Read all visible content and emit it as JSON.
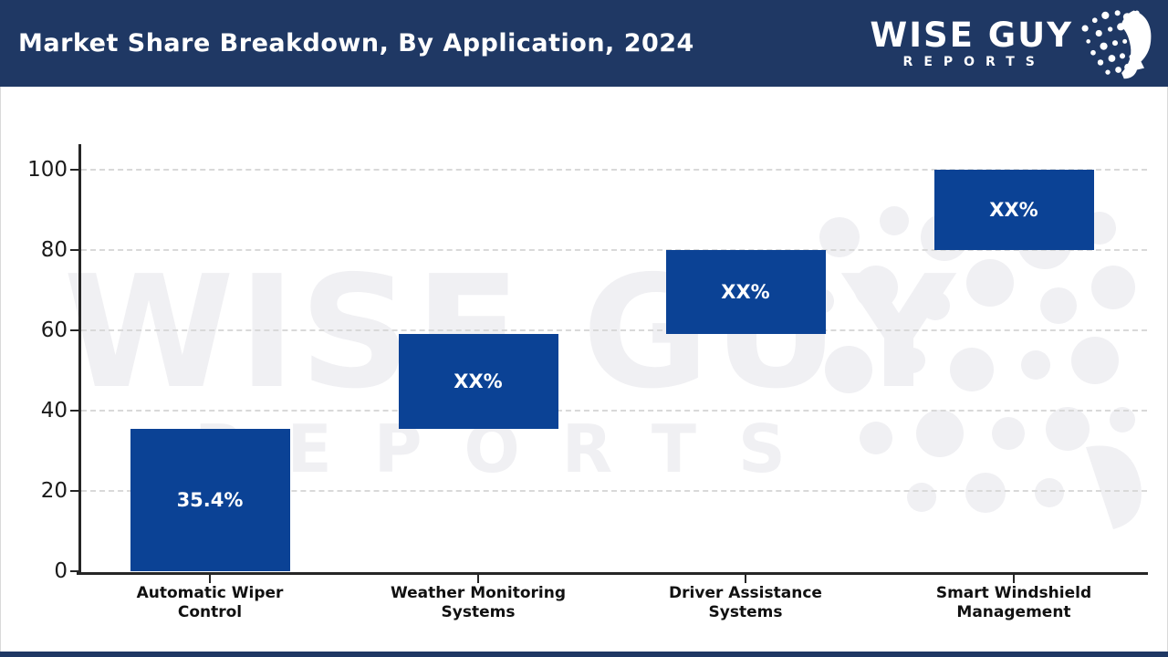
{
  "header": {
    "title": "Market Share Breakdown, By Application, 2024",
    "logo": {
      "line1": "WISE GUY",
      "line2": "REPORTS"
    }
  },
  "watermark": {
    "line1": "WISE GUY",
    "line2": "REPORTS"
  },
  "colors": {
    "header_bg": "#1f3864",
    "bar": "#0b4295",
    "grid": "#d9d9d9",
    "axis": "#262626",
    "bar_label_text": "#ffffff",
    "watermark": "#f0f0f3"
  },
  "chart_data": {
    "type": "bar",
    "subtype": "waterfall",
    "title": "Market Share Breakdown, By Application, 2024",
    "categories": [
      "Automatic Wiper Control",
      "Weather Monitoring Systems",
      "Driver Assistance Systems",
      "Smart Windshield Management"
    ],
    "category_lines": [
      [
        "Automatic Wiper",
        "Control"
      ],
      [
        "Weather Monitoring",
        "Systems"
      ],
      [
        "Driver Assistance",
        "Systems"
      ],
      [
        "Smart Windshield",
        "Management"
      ]
    ],
    "series": [
      {
        "name": "Market Share (%)",
        "segments": [
          {
            "category": "Automatic Wiper Control",
            "start": 0,
            "end": 35.4,
            "label": "35.4%"
          },
          {
            "category": "Weather Monitoring Systems",
            "start": 35.4,
            "end": 59.0,
            "label": "XX%"
          },
          {
            "category": "Driver Assistance Systems",
            "start": 59.0,
            "end": 80.0,
            "label": "XX%"
          },
          {
            "category": "Smart Windshield Management",
            "start": 80.0,
            "end": 100.0,
            "label": "XX%"
          }
        ]
      }
    ],
    "yticks": [
      0,
      20,
      40,
      60,
      80,
      100
    ],
    "ylim": [
      0,
      106
    ],
    "xlabel": "",
    "ylabel": "",
    "grid": "horizontal-dashed",
    "legend": "none"
  }
}
